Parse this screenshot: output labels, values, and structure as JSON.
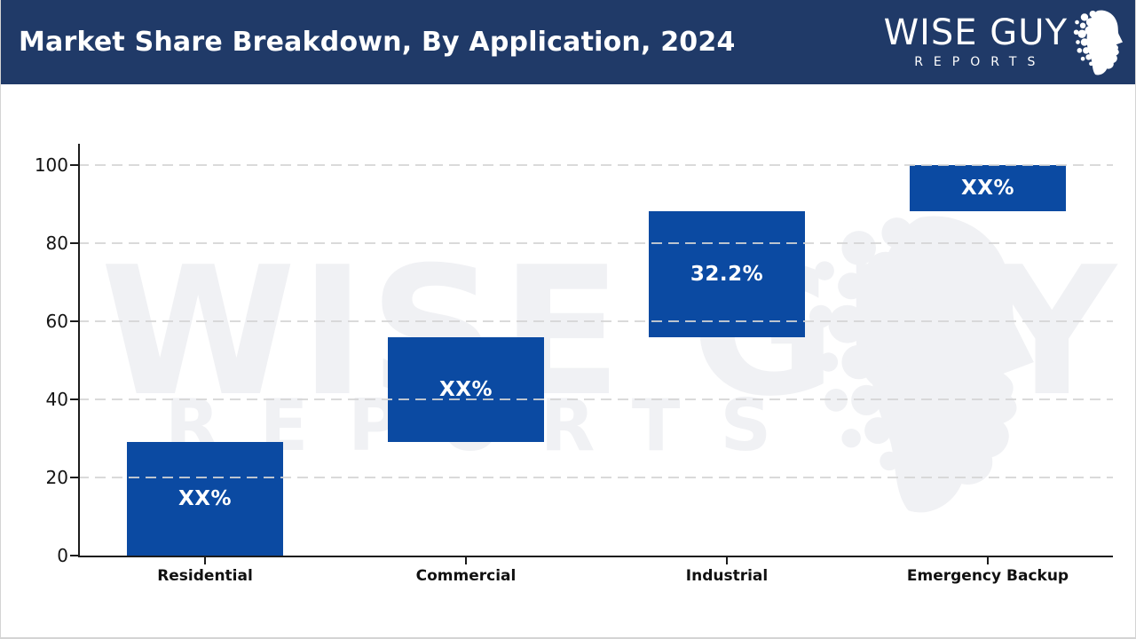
{
  "header": {
    "title": "Market Share Breakdown, By Application, 2024",
    "logo": {
      "line1": "WISE GUY",
      "line2": "REPORTS"
    }
  },
  "watermark": {
    "line1": "WISE GUY",
    "line2": "REPORTS"
  },
  "colors": {
    "header_bg": "#203a68",
    "bar_blue": "#0b4aa2",
    "value_label": "#ffffff",
    "gridline": "#d5d5d5",
    "axis": "#1c1c1c",
    "watermark": "#f0f1f4",
    "background": "#ffffff"
  },
  "chart_data": {
    "type": "bar",
    "variant": "floating-waterfall",
    "title": "Market Share Breakdown, By Application, 2024",
    "categories": [
      "Residential",
      "Commercial",
      "Industrial",
      "Emergency Backup"
    ],
    "bars": [
      {
        "category": "Residential",
        "start": 0,
        "end": 29,
        "value_label": "XX%"
      },
      {
        "category": "Commercial",
        "start": 29,
        "end": 56,
        "value_label": "XX%"
      },
      {
        "category": "Industrial",
        "start": 56,
        "end": 88.2,
        "value_label": "32.2%"
      },
      {
        "category": "Emergency Backup",
        "start": 88.2,
        "end": 100,
        "value_label": "XX%"
      }
    ],
    "xlabel": "",
    "ylabel": "",
    "yticks": [
      0,
      20,
      40,
      60,
      80,
      100
    ],
    "ylim": [
      0,
      105.5
    ],
    "grid": {
      "axis": "y",
      "style": "dashed",
      "drawn_over_bars": true
    },
    "legend": null,
    "bar_color": "#0b4aa2"
  }
}
